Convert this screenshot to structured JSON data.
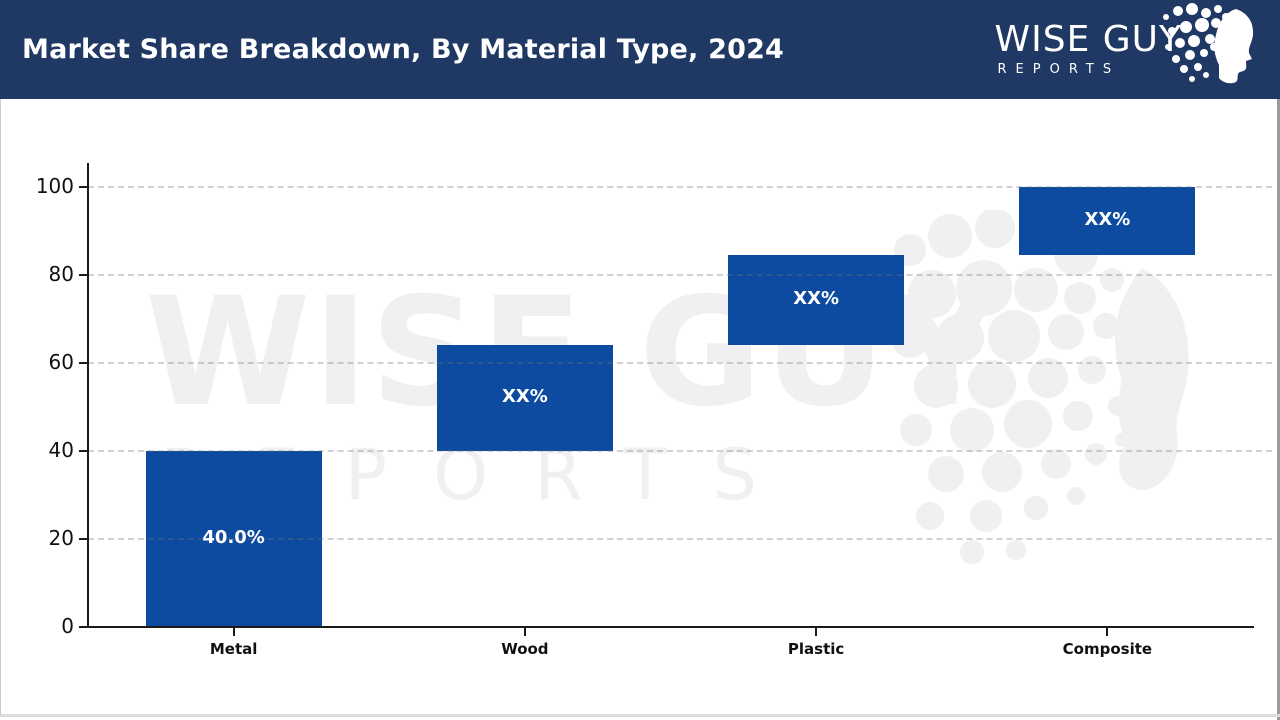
{
  "header": {
    "title": "Market Share Breakdown, By Material Type, 2024",
    "bg_color": "#1f3864",
    "logo": {
      "line1": "WISE GUY",
      "line2": "REPORTS"
    }
  },
  "watermark": {
    "line1": "WISE GUY",
    "line2": "REPORTS"
  },
  "chart_data": {
    "type": "bar",
    "variant": "waterfall",
    "title": "Market Share Breakdown, By Material Type, 2024",
    "categories": [
      "Metal",
      "Wood",
      "Plastic",
      "Composite"
    ],
    "segments": [
      {
        "category": "Metal",
        "start": 0,
        "end": 40,
        "value": 40.0,
        "label": "40.0%"
      },
      {
        "category": "Wood",
        "start": 40,
        "end": 64,
        "value": 24.0,
        "label": "XX%"
      },
      {
        "category": "Plastic",
        "start": 64,
        "end": 84.5,
        "value": 20.5,
        "label": "XX%"
      },
      {
        "category": "Composite",
        "start": 84.5,
        "end": 100,
        "value": 15.5,
        "label": "XX%"
      }
    ],
    "ylim": [
      0,
      105
    ],
    "yticks": [
      0,
      20,
      40,
      60,
      80,
      100
    ],
    "xlabel": "",
    "ylabel": "",
    "grid": "horizontal-dashed",
    "legend": "none",
    "bar_color": "#0c4ba0",
    "bar_label_color": "#ffffff",
    "axis_color": "#1a1a1a"
  }
}
